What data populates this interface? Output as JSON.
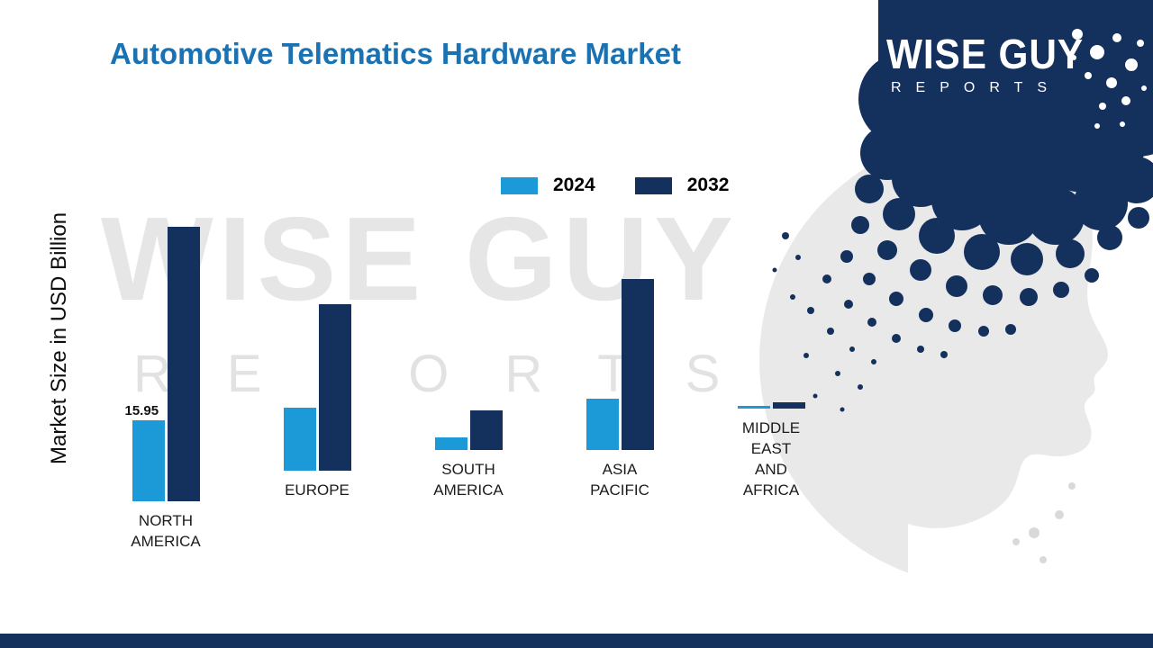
{
  "logo": {
    "wordmark": "WISE GUY",
    "subtext": "REPORTS"
  },
  "watermark": {
    "line1": "WISE GUY",
    "line2": "REPORTS"
  },
  "brand": {
    "navy": "#14305c",
    "light_blue": "#1b9ad7",
    "title_blue": "#1a72b2",
    "watermark_gray": "#e6e6e6"
  },
  "chart_data": {
    "type": "bar",
    "title": "Automotive Telematics Hardware Market",
    "xlabel": "",
    "ylabel": "Market Size in USD Billion",
    "categories": [
      "NORTH AMERICA",
      "EUROPE",
      "SOUTH AMERICA",
      "ASIA PACIFIC",
      "MIDDLE EAST AND AFRICA"
    ],
    "series": [
      {
        "name": "2024",
        "color": "#1b9ad7",
        "values": [
          15.95,
          12.4,
          2.5,
          10.1,
          0.5
        ],
        "labels": [
          "15.95",
          "",
          "",
          "",
          ""
        ]
      },
      {
        "name": "2032",
        "color": "#14305c",
        "values": [
          54.0,
          32.8,
          7.8,
          33.6,
          1.2
        ],
        "labels": [
          "",
          "",
          "",
          "",
          ""
        ]
      }
    ],
    "ylim": [
      0,
      54
    ],
    "grid": false,
    "legend_position": "top"
  }
}
